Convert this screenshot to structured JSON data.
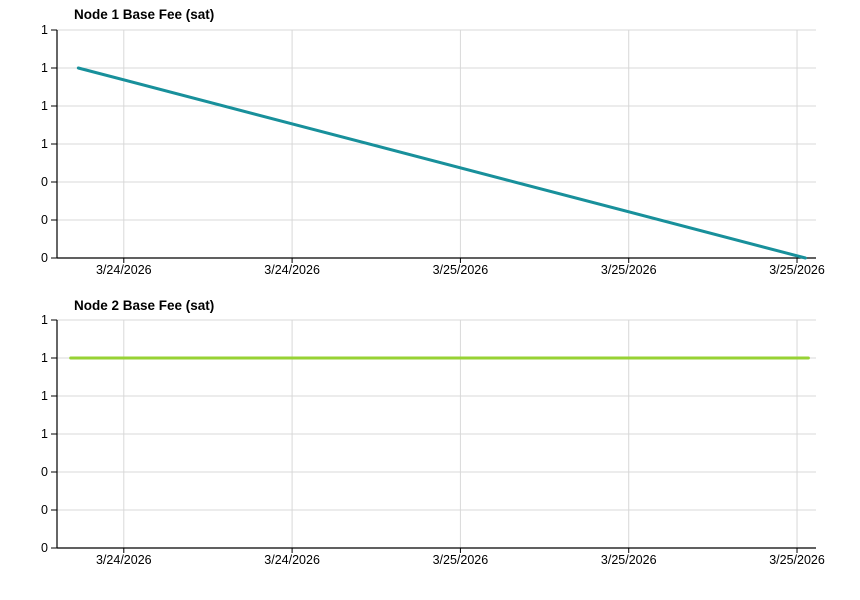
{
  "page": {
    "background": "#ffffff"
  },
  "chart_data": [
    {
      "type": "line",
      "title": "Node 1 Base Fee (sat)",
      "xlabel": "",
      "ylabel": "",
      "ylim": [
        0,
        1.2
      ],
      "grid": true,
      "legend": "none",
      "grid_color": "#d8d8d8",
      "axis_color": "#000000",
      "x_tick_labels": [
        "3/24/2026",
        "3/24/2026",
        "3/25/2026",
        "3/25/2026",
        "3/25/2026"
      ],
      "y_tick_labels": [
        "1",
        "1",
        "1",
        "1",
        "0",
        "0",
        "0"
      ],
      "y_tick_values": [
        1.2,
        1.0,
        0.8,
        0.6,
        0.4,
        0.2,
        0.0
      ],
      "series": [
        {
          "name": "Node 1 Base Fee",
          "color": "#18909B",
          "points": [
            {
              "x": "3/24/2026",
              "y": 1
            },
            {
              "x": "3/25/2026",
              "y": 0
            }
          ],
          "x_start_frac": 0.028,
          "x_end_frac": 0.986
        }
      ]
    },
    {
      "type": "line",
      "title": "Node 2 Base Fee (sat)",
      "xlabel": "",
      "ylabel": "",
      "ylim": [
        0,
        1.2
      ],
      "grid": true,
      "legend": "none",
      "grid_color": "#d8d8d8",
      "axis_color": "#000000",
      "x_tick_labels": [
        "3/24/2026",
        "3/24/2026",
        "3/25/2026",
        "3/25/2026",
        "3/25/2026"
      ],
      "y_tick_labels": [
        "1",
        "1",
        "1",
        "1",
        "0",
        "0",
        "0"
      ],
      "y_tick_values": [
        1.2,
        1.0,
        0.8,
        0.6,
        0.4,
        0.2,
        0.0
      ],
      "series": [
        {
          "name": "Node 2 Base Fee",
          "color": "#97D234",
          "points": [
            {
              "x": "3/24/2026",
              "y": 1
            },
            {
              "x": "3/25/2026",
              "y": 1
            }
          ],
          "x_start_frac": 0.018,
          "x_end_frac": 0.99
        }
      ]
    }
  ]
}
